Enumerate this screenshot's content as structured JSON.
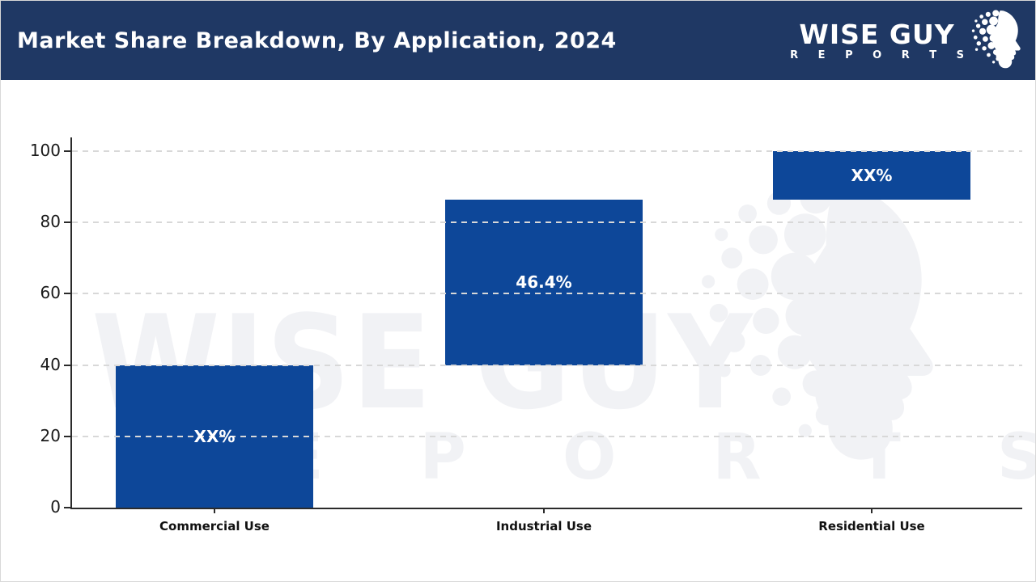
{
  "header": {
    "title": "Market Share Breakdown, By Application, 2024",
    "bg_color": "#1f3864",
    "logo": {
      "line1": "WISE GUY",
      "line2": "R E P O R T S"
    }
  },
  "watermark": {
    "line1": "WISE GUY",
    "line2": "R E P O R T S"
  },
  "chart_data": {
    "type": "bar",
    "variant": "waterfall",
    "title": "",
    "xlabel": "",
    "ylabel": "",
    "categories": [
      "Commercial Use",
      "Industrial Use",
      "Residential Use"
    ],
    "segments": [
      {
        "category": "Commercial Use",
        "start": 0,
        "end": 40,
        "label": "XX%"
      },
      {
        "category": "Industrial Use",
        "start": 40,
        "end": 86.4,
        "label": "46.4%"
      },
      {
        "category": "Residential Use",
        "start": 86.4,
        "end": 100,
        "label": "XX%"
      }
    ],
    "yticks": [
      0,
      20,
      40,
      60,
      80,
      100
    ],
    "ylim": [
      0,
      103.6
    ],
    "grid": {
      "axis": "y",
      "style": "dashed",
      "color": "#d8d8d8"
    },
    "bar_color": "#0d4799",
    "bar_label_color": "#ffffff",
    "axis_color": "#2b2b2b",
    "tick_label_color": "#1a1a1a",
    "legend": "none"
  }
}
